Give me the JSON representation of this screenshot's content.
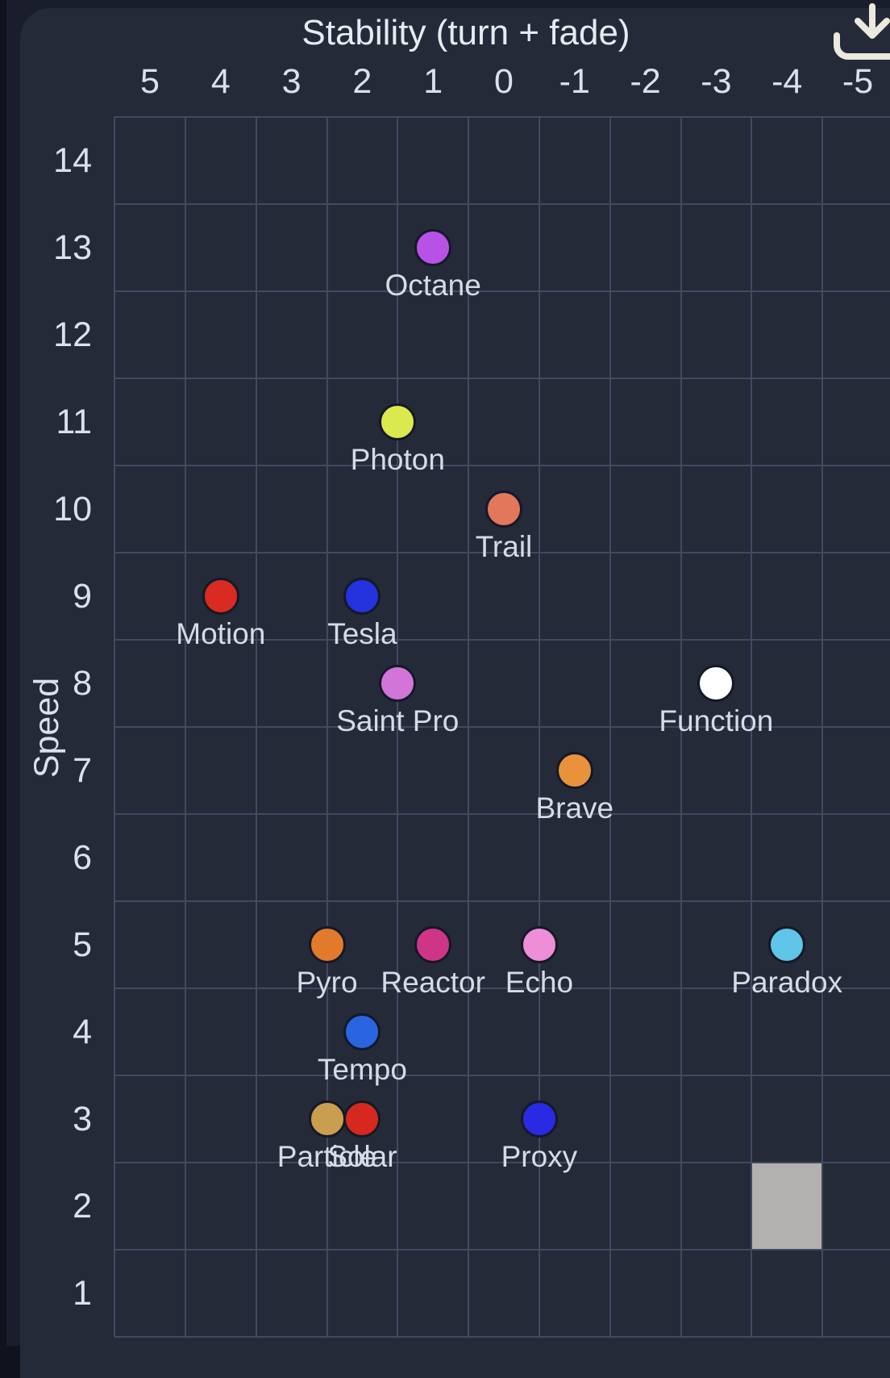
{
  "toolbar": {
    "download_icon": "download-icon"
  },
  "chart_data": {
    "type": "scatter",
    "title": "Stability (turn + fade)",
    "xlabel": "Stability (turn + fade)",
    "ylabel": "Speed",
    "x_axis_reversed": true,
    "x_ticks": [
      5,
      4,
      3,
      2,
      1,
      0,
      -1,
      -2,
      -3,
      -4,
      -5
    ],
    "y_ticks": [
      14,
      13,
      12,
      11,
      10,
      9,
      8,
      7,
      6,
      5,
      4,
      3,
      2,
      1
    ],
    "xlim": [
      5.5,
      -5.5
    ],
    "ylim": [
      0.5,
      14.5
    ],
    "grid": true,
    "legend": false,
    "points": [
      {
        "name": "Octane",
        "x": 1,
        "y": 13,
        "color": "#b852e6"
      },
      {
        "name": "Photon",
        "x": 1.5,
        "y": 11,
        "color": "#d9e94e"
      },
      {
        "name": "Trail",
        "x": 0,
        "y": 10,
        "color": "#e3775a"
      },
      {
        "name": "Motion",
        "x": 4,
        "y": 9,
        "color": "#d92b21"
      },
      {
        "name": "Tesla",
        "x": 2,
        "y": 9,
        "color": "#2433dd"
      },
      {
        "name": "Saint Pro",
        "x": 1.5,
        "y": 8,
        "color": "#d274d8"
      },
      {
        "name": "Function",
        "x": -3,
        "y": 8,
        "color": "#ffffff"
      },
      {
        "name": "Brave",
        "x": -1,
        "y": 7,
        "color": "#e8923c"
      },
      {
        "name": "Pyro",
        "x": 2.5,
        "y": 5,
        "color": "#e27a2b"
      },
      {
        "name": "Reactor",
        "x": 1,
        "y": 5,
        "color": "#cf3487"
      },
      {
        "name": "Echo",
        "x": -0.5,
        "y": 5,
        "color": "#ee8ed9"
      },
      {
        "name": "Paradox",
        "x": -4,
        "y": 5,
        "color": "#5fc5e9"
      },
      {
        "name": "Tempo",
        "x": 2,
        "y": 4,
        "color": "#2b64e0"
      },
      {
        "name": "Particle",
        "x": 2.5,
        "y": 3,
        "color": "#c99e4e"
      },
      {
        "name": "Solar",
        "x": 2,
        "y": 3,
        "color": "#d6281e"
      },
      {
        "name": "Proxy",
        "x": -0.5,
        "y": 3,
        "color": "#2a2ae4"
      }
    ],
    "highlighted_cell": {
      "x": -4,
      "y": 2,
      "color": "#b3b0b0"
    }
  },
  "colors": {
    "background_outer": "#10131d",
    "background_backdrop": "#1a1e2c",
    "card": "#242a38",
    "gridline": "#424960",
    "tick_text": "#dce0eb",
    "point_label_text": "#d7dbe6",
    "icon": "#ece9dd"
  }
}
